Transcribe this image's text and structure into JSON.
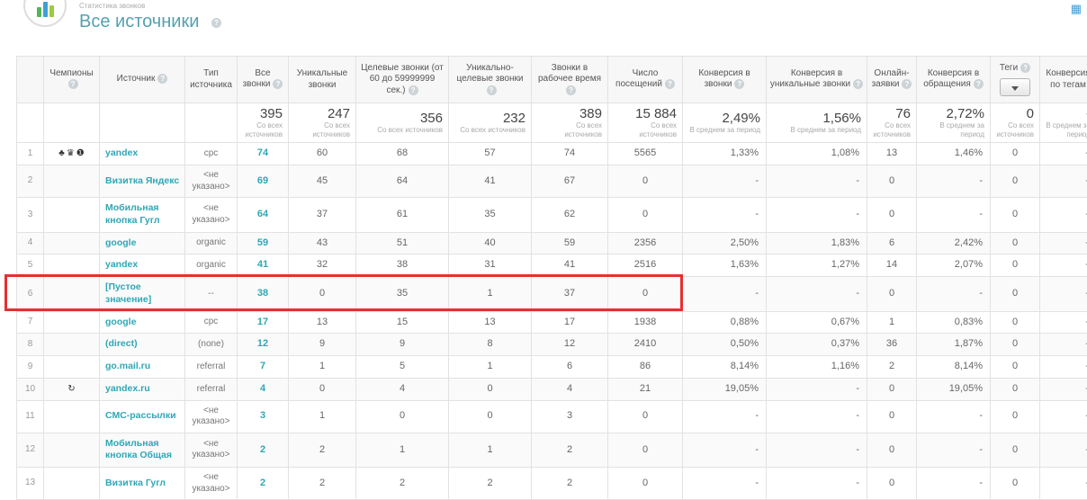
{
  "colors": {
    "accent_teal": "#2fa7b5",
    "title_blue": "#55a1b0",
    "highlight_red": "#e53030",
    "logo_bars": [
      "#52b55a",
      "#3f9fd8",
      "#9ccb3b"
    ]
  },
  "icons": {
    "help": "?",
    "report": "▦",
    "refresh": "↻",
    "caret": "▾"
  },
  "header": {
    "subtitle": "Статистика звонков",
    "title": "Все источники"
  },
  "table": {
    "columns": [
      {
        "id": "row-number",
        "label": "",
        "help": false
      },
      {
        "id": "champions",
        "label": "Чемпионы",
        "help": true
      },
      {
        "id": "source",
        "label": "Источник",
        "help": true
      },
      {
        "id": "source-type",
        "label": "Тип источника",
        "help": false
      },
      {
        "id": "all-calls",
        "label": "Все звонки",
        "help": true
      },
      {
        "id": "unique-calls",
        "label": "Уникальные звонки",
        "help": false
      },
      {
        "id": "target-calls",
        "label": "Целевые звонки (от 60 до 59999999 сек.)",
        "help": true
      },
      {
        "id": "unique-target-calls",
        "label": "Уникально-целевые звонки",
        "help": true
      },
      {
        "id": "work-time-calls",
        "label": "Звонки в рабочее время",
        "help": true
      },
      {
        "id": "visits",
        "label": "Число посещений",
        "help": true
      },
      {
        "id": "conversion-calls",
        "label": "Конверсия в звонки",
        "help": true
      },
      {
        "id": "conversion-unique-calls",
        "label": "Конверсия в уникальные звонки",
        "help": true
      },
      {
        "id": "online-leads",
        "label": "Онлайн-заявки",
        "help": true
      },
      {
        "id": "conversion-requests",
        "label": "Конверсия в обращения",
        "help": true
      },
      {
        "id": "tags",
        "label": "Теги",
        "help": true,
        "button": true
      },
      {
        "id": "conversion-tags",
        "label": "Конверсия по тегам",
        "help": false
      }
    ],
    "totals": [
      {
        "value": "395",
        "caption": "Со всех источников"
      },
      {
        "value": "247",
        "caption": "Со всех источников"
      },
      {
        "value": "356",
        "caption": "Со всех источников"
      },
      {
        "value": "232",
        "caption": "Со всех источников"
      },
      {
        "value": "389",
        "caption": "Со всех источников"
      },
      {
        "value": "15 884",
        "caption": "Со всех источников"
      },
      {
        "value": "2,49%",
        "caption": "В среднем за период"
      },
      {
        "value": "1,56%",
        "caption": "В среднем за период"
      },
      {
        "value": "76",
        "caption": "Со всех источников"
      },
      {
        "value": "2,72%",
        "caption": "В среднем за период"
      },
      {
        "value": "0",
        "caption": "Со всех источников"
      },
      {
        "value": "-",
        "caption": "В среднем за период"
      }
    ],
    "rows": [
      {
        "num": "1",
        "champion_icons": [
          {
            "name": "club-badge-icon",
            "glyph": "♣"
          },
          {
            "name": "crown-badge-icon",
            "glyph": "♛"
          },
          {
            "name": "medal-badge-icon",
            "glyph": "❶"
          }
        ],
        "source": "yandex",
        "type": "cpc",
        "values": [
          "74",
          "60",
          "68",
          "57",
          "74",
          "5565",
          "1,33%",
          "1,08%",
          "13",
          "1,46%",
          "0",
          "-"
        ],
        "highlighted": false
      },
      {
        "num": "2",
        "champion_icons": [],
        "source": "Визитка Яндекс",
        "type": "<не указано>",
        "values": [
          "69",
          "45",
          "64",
          "41",
          "67",
          "0",
          "-",
          "-",
          "0",
          "-",
          "0",
          "-"
        ],
        "highlighted": false
      },
      {
        "num": "3",
        "champion_icons": [],
        "source": "Мобильная кнопка Гугл",
        "type": "<не указано>",
        "values": [
          "64",
          "37",
          "61",
          "35",
          "62",
          "0",
          "-",
          "-",
          "0",
          "-",
          "0",
          "-"
        ],
        "highlighted": false
      },
      {
        "num": "4",
        "champion_icons": [],
        "source": "google",
        "type": "organic",
        "values": [
          "59",
          "43",
          "51",
          "40",
          "59",
          "2356",
          "2,50%",
          "1,83%",
          "6",
          "2,42%",
          "0",
          "-"
        ],
        "highlighted": false
      },
      {
        "num": "5",
        "champion_icons": [],
        "source": "yandex",
        "type": "organic",
        "values": [
          "41",
          "32",
          "38",
          "31",
          "41",
          "2516",
          "1,63%",
          "1,27%",
          "14",
          "2,07%",
          "0",
          "-"
        ],
        "highlighted": false
      },
      {
        "num": "6",
        "champion_icons": [],
        "source": "[Пустое значение]",
        "type": "--",
        "values": [
          "38",
          "0",
          "35",
          "1",
          "37",
          "0",
          "-",
          "-",
          "0",
          "-",
          "0",
          "-"
        ],
        "highlighted": true
      },
      {
        "num": "7",
        "champion_icons": [],
        "source": "google",
        "type": "cpc",
        "values": [
          "17",
          "13",
          "15",
          "13",
          "17",
          "1938",
          "0,88%",
          "0,67%",
          "1",
          "0,83%",
          "0",
          "-"
        ],
        "highlighted": false
      },
      {
        "num": "8",
        "champion_icons": [],
        "source": "(direct)",
        "type": "(none)",
        "values": [
          "12",
          "9",
          "9",
          "8",
          "12",
          "2410",
          "0,50%",
          "0,37%",
          "36",
          "1,87%",
          "0",
          "-"
        ],
        "highlighted": false
      },
      {
        "num": "9",
        "champion_icons": [],
        "source": "go.mail.ru",
        "type": "referral",
        "values": [
          "7",
          "1",
          "5",
          "1",
          "6",
          "86",
          "8,14%",
          "1,16%",
          "2",
          "8,14%",
          "0",
          "-"
        ],
        "highlighted": false
      },
      {
        "num": "10",
        "champion_icons": [
          {
            "name": "refresh-icon",
            "glyph": "↻"
          }
        ],
        "source": "yandex.ru",
        "type": "referral",
        "values": [
          "4",
          "0",
          "4",
          "0",
          "4",
          "21",
          "19,05%",
          "-",
          "0",
          "19,05%",
          "0",
          "-"
        ],
        "highlighted": false
      },
      {
        "num": "11",
        "champion_icons": [],
        "source": "СМС-рассылки",
        "type": "<не указано>",
        "values": [
          "3",
          "1",
          "0",
          "0",
          "3",
          "0",
          "-",
          "-",
          "0",
          "-",
          "0",
          "-"
        ],
        "highlighted": false
      },
      {
        "num": "12",
        "champion_icons": [],
        "source": "Мобильная кнопка Общая",
        "type": "<не указано>",
        "values": [
          "2",
          "2",
          "1",
          "1",
          "2",
          "0",
          "-",
          "-",
          "0",
          "-",
          "0",
          "-"
        ],
        "highlighted": false
      },
      {
        "num": "13",
        "champion_icons": [],
        "source": "Визитка Гугл",
        "type": "<не указано>",
        "values": [
          "2",
          "2",
          "2",
          "2",
          "2",
          "0",
          "-",
          "-",
          "0",
          "-",
          "0",
          "-"
        ],
        "highlighted": false
      }
    ]
  }
}
